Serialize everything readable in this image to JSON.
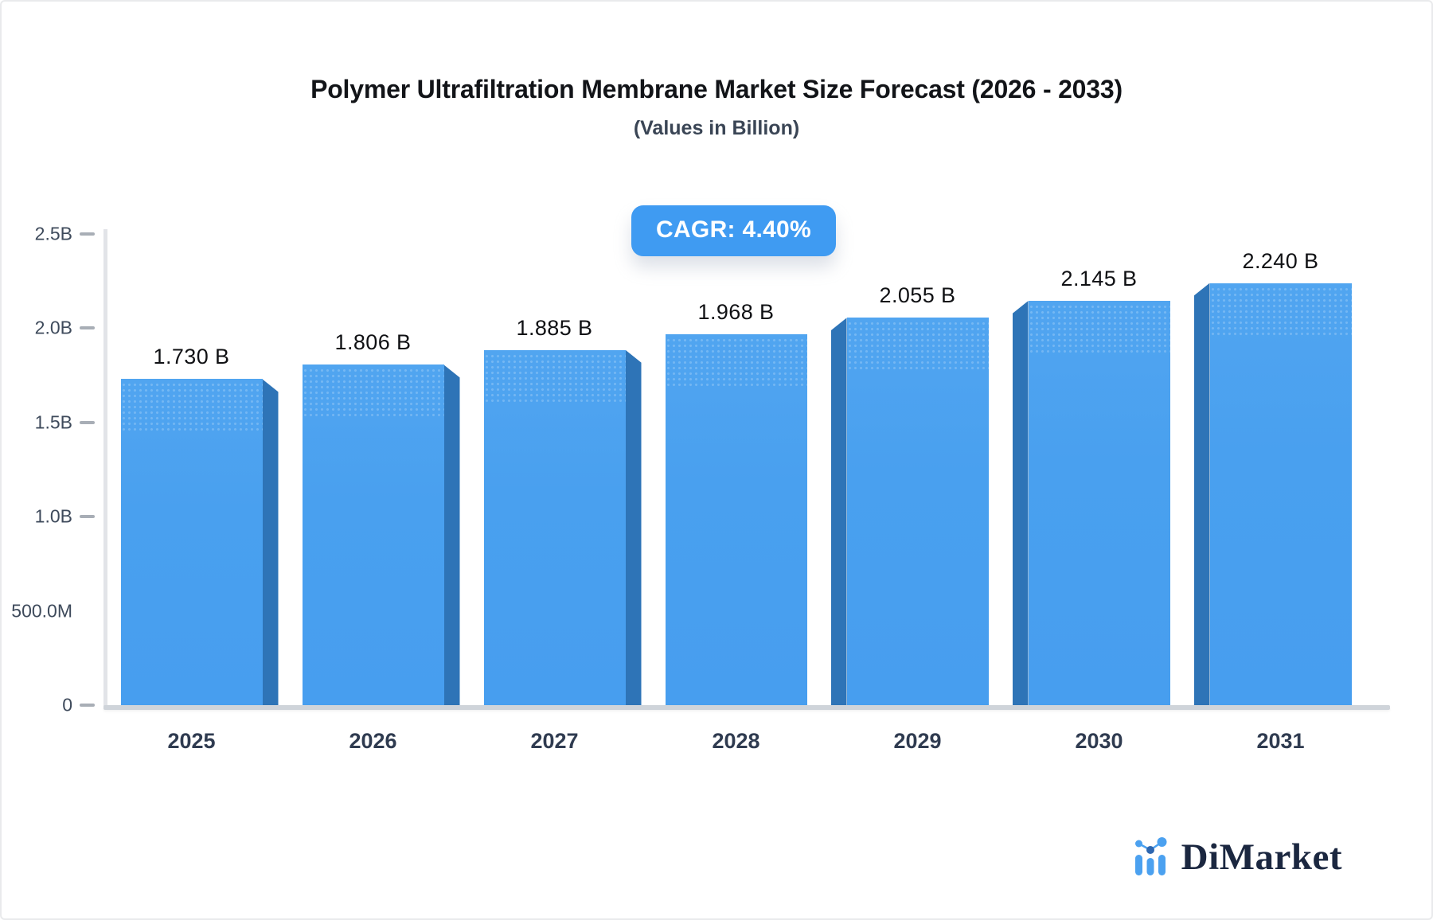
{
  "chart_data": {
    "type": "bar",
    "title": "Polymer Ultrafiltration Membrane Market Size Forecast (2026 - 2033)",
    "subtitle": "(Values in Billion)",
    "cagr_badge": "CAGR: 4.40%",
    "categories": [
      "2025",
      "2026",
      "2027",
      "2028",
      "2029",
      "2030",
      "2031"
    ],
    "values": [
      1.73,
      1.806,
      1.885,
      1.968,
      2.055,
      2.145,
      2.24
    ],
    "value_labels": [
      "1.730 B",
      "1.806 B",
      "1.885 B",
      "1.968 B",
      "2.055 B",
      "2.145 B",
      "2.240 B"
    ],
    "ylim": [
      0,
      2.5
    ],
    "y_ticks": [
      {
        "label": "2.5B",
        "value": 2.5,
        "dash": true
      },
      {
        "label": "2.0B",
        "value": 2.0,
        "dash": true
      },
      {
        "label": "1.5B",
        "value": 1.5,
        "dash": true
      },
      {
        "label": "1.0B",
        "value": 1.0,
        "dash": true
      },
      {
        "label": "500.0M",
        "value": 0.5,
        "dash": false
      },
      {
        "label": "0",
        "value": 0,
        "dash": true
      }
    ],
    "grid": false,
    "legend": "none",
    "colors": {
      "bar_fill": "#49A0EF",
      "bar_side": "#2E74B7",
      "badge_bg": "#3F9BF2",
      "badge_text": "#FFFFFF",
      "axis_line": "#E2E4E8",
      "baseline": "#CFD4DA",
      "tick_dash": "#A8AEB6",
      "y_label": "#3E4A5B",
      "x_label": "#2F3B50",
      "title": "#121418",
      "subtitle": "#3A4555",
      "value_label": "#101114"
    }
  },
  "footer": {
    "brand_name": "DiMarket",
    "brand_text_color": "#1B2740",
    "icon_blue": "#4BA1F0",
    "icon_dark_dot": "#2D66B0"
  }
}
